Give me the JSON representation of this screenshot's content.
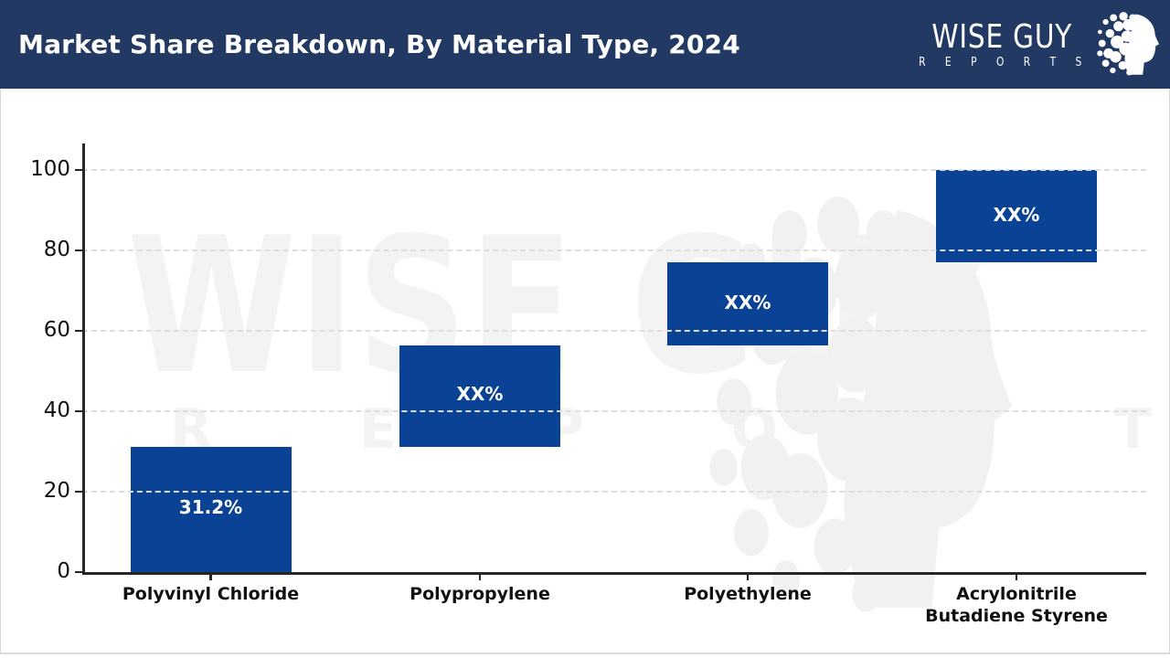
{
  "header": {
    "title": "Market Share Breakdown, By Material Type, 2024",
    "logo": {
      "line1": "WISE GUY",
      "line2": "R E P O R T S"
    }
  },
  "watermark": {
    "line1": "WISE GUY",
    "line2": "R E P O R T S"
  },
  "colors": {
    "header_bg": "#223A63",
    "bar": "#0A4296",
    "bar_label": "#ffffff",
    "grid": "#dedede",
    "axis": "#262626",
    "card_border": "#d9d9d9",
    "watermark": "#f3f3f3"
  },
  "chart_data": {
    "type": "bar",
    "subtype": "waterfall",
    "title": "Market Share Breakdown, By Material Type, 2024",
    "xlabel": "",
    "ylabel": "",
    "ylim": [
      0,
      100
    ],
    "yticks": [
      0,
      20,
      40,
      60,
      80,
      100
    ],
    "grid": "horizontal-dashed-over-bars",
    "legend": "none",
    "categories": [
      "Polyvinyl Chloride",
      "Polypropylene",
      "Polyethylene",
      "Acrylonitrile Butadiene Styrene"
    ],
    "segments": [
      {
        "category": "Polyvinyl Chloride",
        "start": 0,
        "end": 31.2,
        "value": 31.2,
        "label": "31.2%"
      },
      {
        "category": "Polypropylene",
        "start": 31.2,
        "end": 56.4,
        "value": 25.2,
        "label": "XX%"
      },
      {
        "category": "Polyethylene",
        "start": 56.4,
        "end": 77.0,
        "value": 20.6,
        "label": "XX%"
      },
      {
        "category": "Acrylonitrile Butadiene Styrene",
        "start": 77.0,
        "end": 100.0,
        "value": 23.0,
        "label": "XX%"
      }
    ]
  }
}
